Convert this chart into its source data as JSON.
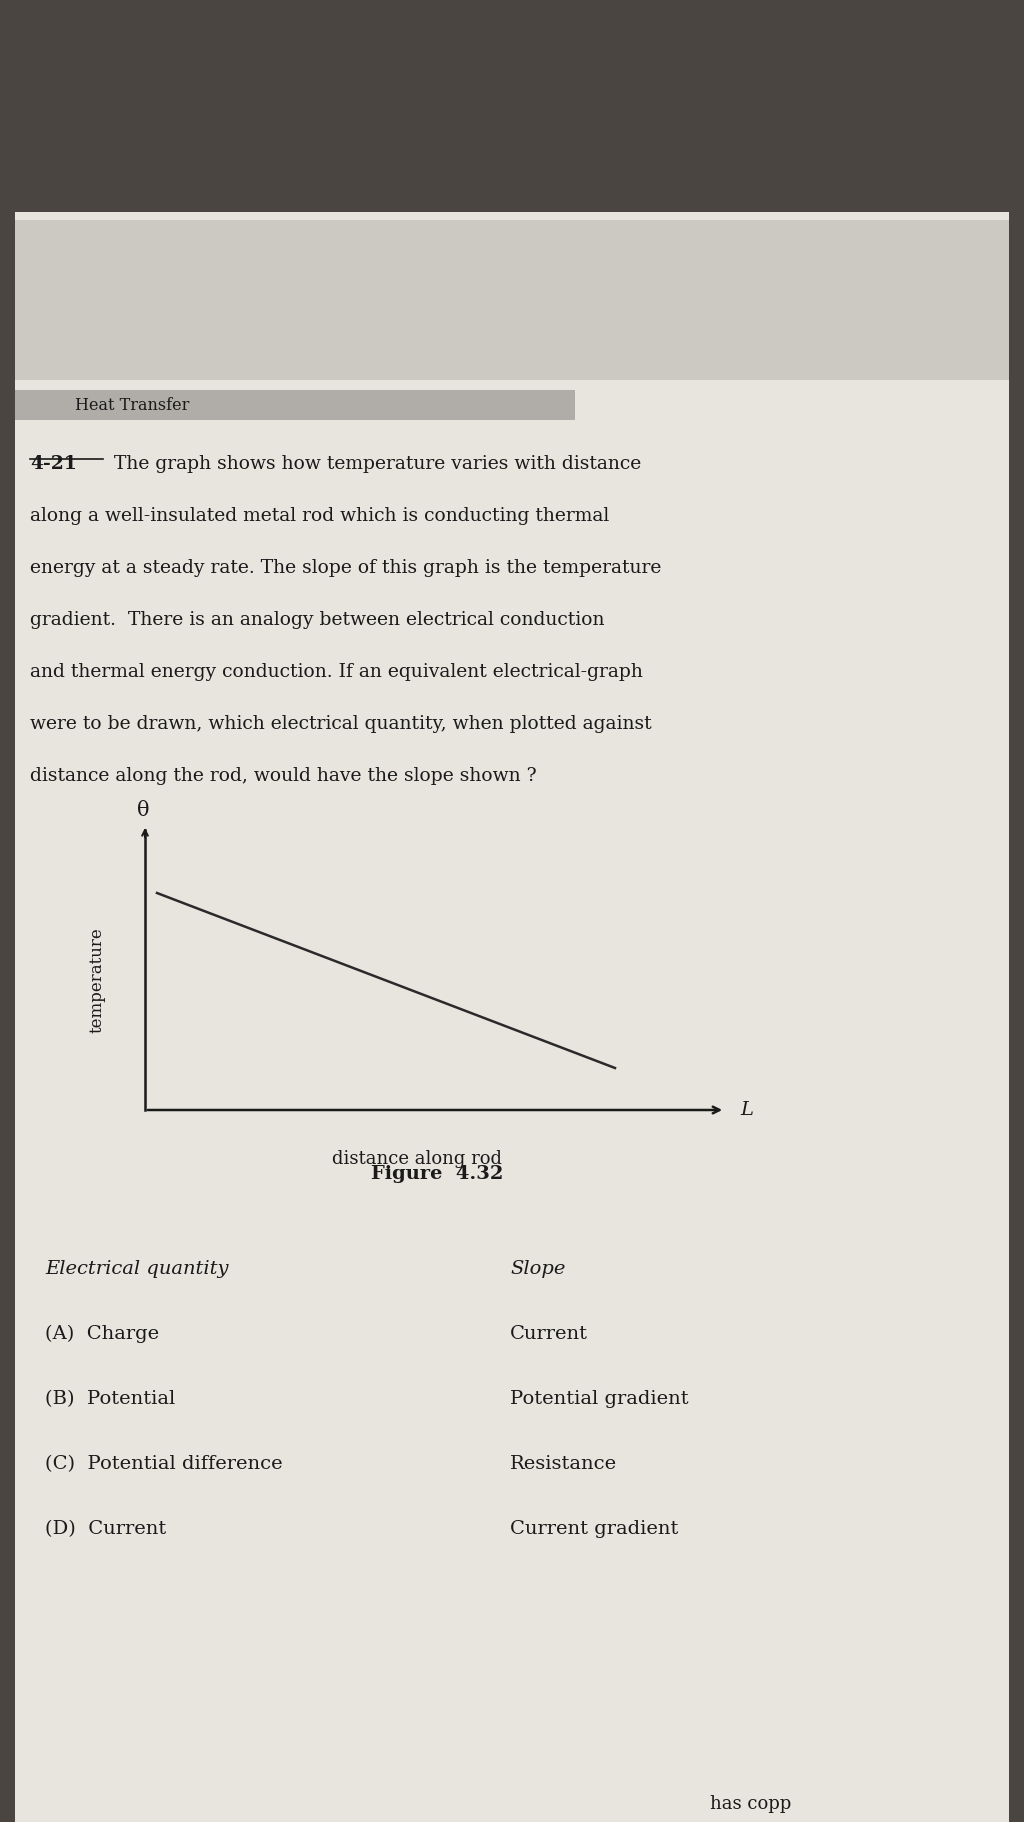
{
  "bg_color_top": "#4a4540",
  "bg_color_page": "#e8e5df",
  "bg_color_page_curve": "#ccc8c2",
  "header_bar_color": "#b0ada8",
  "header_text": "Heat Transfer",
  "question_number": "4-21",
  "question_lines": [
    " The graph shows how temperature varies with distance",
    "along a well-insulated metal rod which is conducting thermal",
    "energy at a steady rate. The slope of this graph is the temperature",
    "gradient.  There is an analogy between electrical conduction",
    "and thermal energy conduction. If an equivalent electrical-graph",
    "were to be drawn, which electrical quantity, when plotted against",
    "distance along the rod, would have the slope shown ?"
  ],
  "figure_caption": "Figure  4.32",
  "xlabel": "distance along rod",
  "ylabel": "temperature",
  "yaxis_label_top": "θ",
  "xaxis_label_right": "L",
  "col1_header": "Electrical quantity",
  "col2_header": "Slope",
  "rows": [
    [
      "(A)  Charge",
      "Current"
    ],
    [
      "(B)  Potential",
      "Potential gradient"
    ],
    [
      "(C)  Potential difference",
      "Resistance"
    ],
    [
      "(D)  Current",
      "Current gradient"
    ]
  ],
  "bottom_text": "has copp",
  "text_color": "#1a1a1a",
  "line_color": "#2a2a2a",
  "axis_color": "#1a1a1a",
  "fontsize_body": 13.5,
  "fontsize_header": 11.5,
  "fontsize_table": 14.0,
  "fontsize_caption": 14.0
}
